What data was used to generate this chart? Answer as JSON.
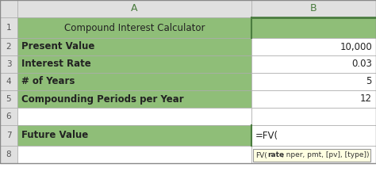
{
  "fig_width": 4.74,
  "fig_height": 2.31,
  "dpi": 100,
  "col_header_bg": "#e0e0e0",
  "row_header_bg": "#e0e0e0",
  "green_bg": "#8fbe78",
  "white_bg": "#ffffff",
  "grid_color": "#aaaaaa",
  "col_header_text": "#4a7c3f",
  "row_header_text": "#555555",
  "rows": [
    {
      "row": "1",
      "a_text": "Compound Interest Calculator",
      "b_text": "",
      "a_align": "center",
      "b_align": "right",
      "a_green": true,
      "b_green": true,
      "a_bold": false
    },
    {
      "row": "2",
      "a_text": "Present Value",
      "b_text": "10,000",
      "a_align": "left",
      "b_align": "right",
      "a_green": true,
      "b_green": false,
      "a_bold": true
    },
    {
      "row": "3",
      "a_text": "Interest Rate",
      "b_text": "0.03",
      "a_align": "left",
      "b_align": "right",
      "a_green": true,
      "b_green": false,
      "a_bold": true
    },
    {
      "row": "4",
      "a_text": "# of Years",
      "b_text": "5",
      "a_align": "left",
      "b_align": "right",
      "a_green": true,
      "b_green": false,
      "a_bold": true
    },
    {
      "row": "5",
      "a_text": "Compounding Periods per Year",
      "b_text": "12",
      "a_align": "left",
      "b_align": "right",
      "a_green": true,
      "b_green": false,
      "a_bold": true
    },
    {
      "row": "6",
      "a_text": "",
      "b_text": "",
      "a_align": "left",
      "b_align": "right",
      "a_green": false,
      "b_green": false,
      "a_bold": false
    },
    {
      "row": "7",
      "a_text": "Future Value",
      "b_text": "=FV(",
      "a_align": "left",
      "b_align": "left",
      "a_green": true,
      "b_green": false,
      "a_bold": true
    },
    {
      "row": "8",
      "a_text": "",
      "b_text": "",
      "a_align": "left",
      "b_align": "right",
      "a_green": false,
      "b_green": false,
      "a_bold": false
    }
  ],
  "tooltip_bg": "#ffffe1",
  "tooltip_border": "#999999",
  "tooltip_prefix": "FV(",
  "tooltip_bold": "rate",
  "tooltip_suffix": ", nper, pmt, [pv], [type])"
}
